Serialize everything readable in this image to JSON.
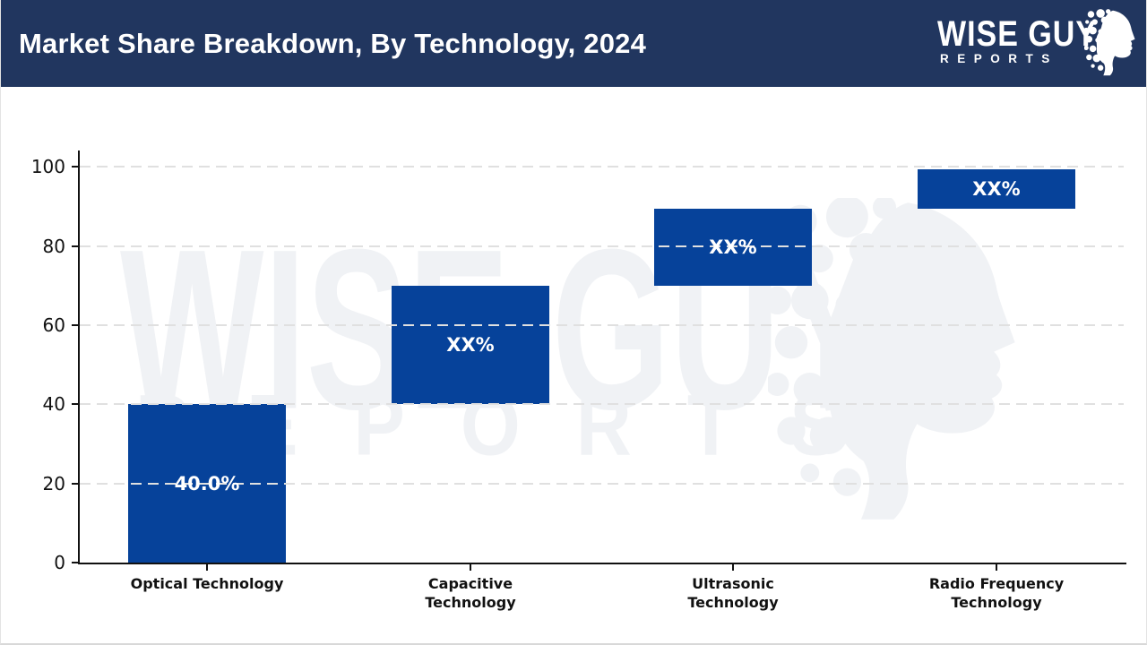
{
  "page": {
    "border_color": "#d8d8d8",
    "header": {
      "bg_color": "#21365f",
      "title": "Market Share Breakdown, By Technology, 2024",
      "logo": {
        "line1": "WISE GUY",
        "line2": "REPORTS"
      }
    },
    "watermark": {
      "line1": "WISE GUY",
      "line2": "REPORTS"
    }
  },
  "chart_data": {
    "type": "bar",
    "subtype": "waterfall",
    "title": "Market Share Breakdown, By Technology, 2024",
    "categories": [
      "Optical Technology",
      "Capacitive Technology",
      "Ultrasonic Technology",
      "Radio Frequency Technology"
    ],
    "category_lines": [
      [
        "Optical Technology"
      ],
      [
        "Capacitive",
        "Technology"
      ],
      [
        "Ultrasonic",
        "Technology"
      ],
      [
        "Radio Frequency",
        "Technology"
      ]
    ],
    "series": [
      {
        "name": "Market share (%)",
        "segments": [
          {
            "category": "Optical Technology",
            "start": 0,
            "end": 40,
            "delta": 40,
            "label": "40.0%"
          },
          {
            "category": "Capacitive Technology",
            "start": 40,
            "end": 70,
            "delta": 30,
            "label": "XX%"
          },
          {
            "category": "Ultrasonic Technology",
            "start": 70,
            "end": 89.5,
            "delta": 19.5,
            "label": "XX%"
          },
          {
            "category": "Radio Frequency Technology",
            "start": 89.5,
            "end": 99.4,
            "delta": 9.9,
            "label": "XX%"
          }
        ]
      }
    ],
    "ylim": [
      0,
      104
    ],
    "yticks": [
      0,
      20,
      40,
      60,
      80,
      100
    ],
    "xlabel": "",
    "ylabel": "",
    "grid": "horizontal-dashed",
    "legend": "none",
    "bar_color": "#06429a",
    "value_label_color": "#ffffff",
    "axis_color": "#111111",
    "gridline_color": "#e0e0e0"
  }
}
